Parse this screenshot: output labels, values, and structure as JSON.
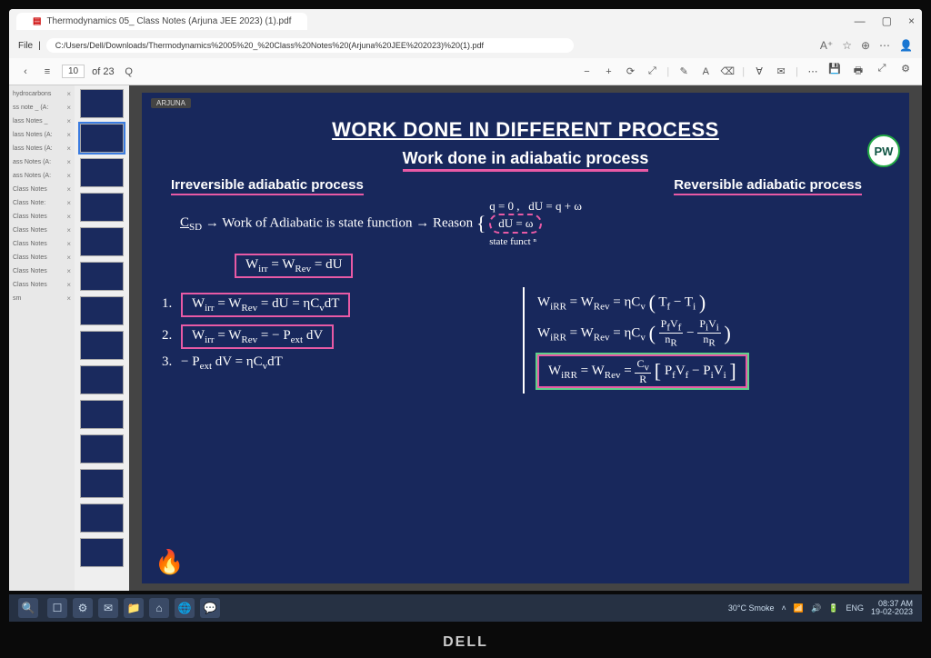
{
  "browser": {
    "tab_title": "Thermodynamics 05_ Class Notes (Arjuna JEE 2023) (1).pdf",
    "file_path_label": "File",
    "url": "C:/Users/Dell/Downloads/Thermodynamics%2005%20_%20Class%20Notes%20(Arjuna%20JEE%202023)%20(1).pdf",
    "win_min": "—",
    "win_max": "▢",
    "win_close": "×"
  },
  "pdf_toolbar": {
    "page_current": "10",
    "page_total": "of 23",
    "zoom_out": "−",
    "zoom_in": "+"
  },
  "thumb_labels": [
    "hydrocarbons",
    "ss note _ (A:",
    "lass Notes _",
    "lass Notes (A:",
    "lass Notes (A:",
    "ass Notes (A:",
    "ass Notes (A:",
    "Class Notes",
    "Class Note:",
    "Class Notes",
    "Class Notes",
    "Class Notes",
    "Class Notes",
    "Class Notes",
    "Class Notes",
    "sm"
  ],
  "slide": {
    "brand": "ARJUNA",
    "badge": "PW",
    "title": "WORK DONE IN DIFFERENT PROCESS",
    "subtitle": "Work done in adiabatic process",
    "left_head": "Irreversible adiabatic process",
    "right_head": "Reversible adiabatic process",
    "csd_line": "C_SD → Work of Adiabatic is state function → Reason",
    "reason_brace": "q = 0 ,  dU = q + ω",
    "cloud": "dU = ω",
    "state_fn": "state funct ⁿ",
    "center_box": "W_irr = W_Rev = dU",
    "left_eq1": "W_irr = W_Rev = dU = ηCv dT",
    "left_eq2": "W_irr = W_Rev = − P_ext dV",
    "left_eq3": "− P_ext dV = ηCv dT",
    "right_eq1": "W_iRR = W_Rev = ηCv ( T_f − T_i )",
    "right_eq2_pre": "W_iRR = W_Rev = ηCv",
    "right_eq3_pre": "W_iRR = W_Rev ="
  },
  "taskbar": {
    "search": "🔍",
    "items": [
      "☐",
      "⚙",
      "✉",
      "📁",
      "⌂",
      "🌐",
      "💬"
    ],
    "weather": "30°C Smoke",
    "time": "08:37 AM",
    "date": "19-02-2023",
    "lang": "ENG"
  },
  "laptop_brand": "DELL",
  "colors": {
    "slide_bg": "#18285c",
    "pink": "#e85aa5",
    "green": "#5fd08a"
  }
}
